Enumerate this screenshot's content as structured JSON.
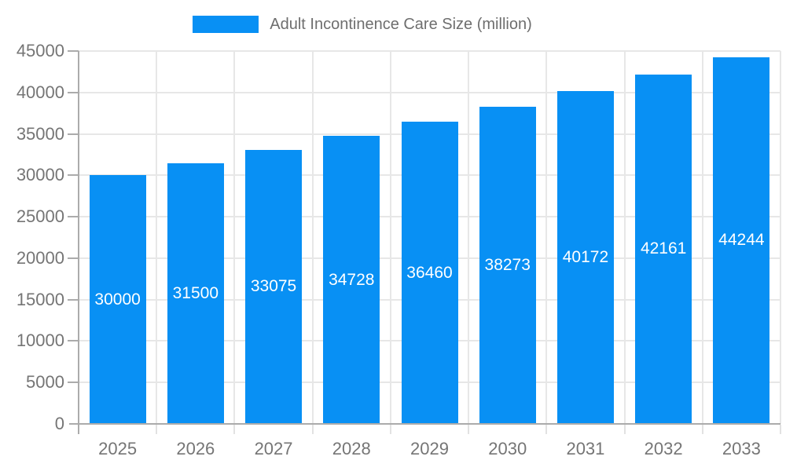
{
  "legend": {
    "label": "Adult Incontinence Care Size (million)"
  },
  "colors": {
    "bar": "#0890f4",
    "bar_label": "#ffffff",
    "grid": "#e7e7e7",
    "axis": "#ababab",
    "x_tick": "#e2e2e2",
    "text": "#757575",
    "legend_text": "#6e6e6e",
    "background": "#ffffff"
  },
  "chart_data": {
    "type": "bar",
    "title": "Adult Incontinence Care Size (million)",
    "categories": [
      "2025",
      "2026",
      "2027",
      "2028",
      "2029",
      "2030",
      "2031",
      "2032",
      "2033"
    ],
    "values": [
      30000,
      31500,
      33075,
      34728,
      36460,
      38273,
      40172,
      42161,
      44244
    ],
    "series": [
      {
        "name": "Adult Incontinence Care Size (million)",
        "values": [
          30000,
          31500,
          33075,
          34728,
          36460,
          38273,
          40172,
          42161,
          44244
        ]
      }
    ],
    "xlabel": "",
    "ylabel": "",
    "ylim": [
      0,
      45000
    ],
    "ytick_step": 5000,
    "grid": true,
    "legend_position": "top",
    "data_labels": "inside-center"
  }
}
